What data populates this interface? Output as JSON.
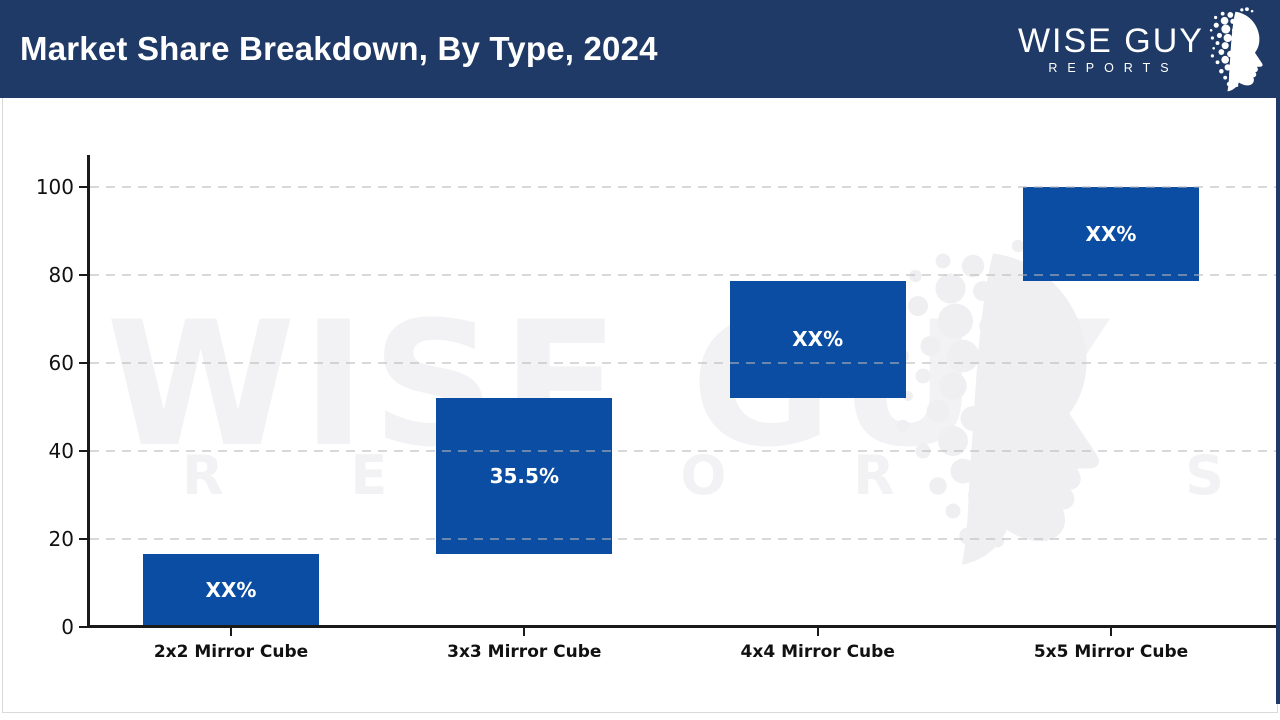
{
  "header": {
    "title": "Market Share Breakdown, By Type, 2024"
  },
  "logo": {
    "line1": "WISE GUY",
    "line2": "REPORTS"
  },
  "watermark": {
    "line1": "WISE GUY",
    "line2": "R E P O R T S"
  },
  "colors": {
    "header_bg": "#1F3A66",
    "bar": "#0B4DA2",
    "bar_label": "#FFFFFF",
    "axis": "#1A1A1A",
    "grid_dash": "#DCDCDC",
    "watermark": "#F2F2F4",
    "page_border": "#D9D9D9"
  },
  "chart_data": {
    "type": "bar",
    "subtype": "floating_segment_column",
    "title": "Market Share Breakdown, By Type, 2024",
    "categories": [
      "2x2 Mirror Cube",
      "3x3 Mirror Cube",
      "4x4 Mirror Cube",
      "5x5 Mirror Cube"
    ],
    "series": [
      {
        "name": "Market share (%)",
        "segments": [
          {
            "category": "2x2 Mirror Cube",
            "start": 0,
            "end": 16.5,
            "label": "XX%"
          },
          {
            "category": "3x3 Mirror Cube",
            "start": 16.5,
            "end": 52,
            "label": "35.5%"
          },
          {
            "category": "4x4 Mirror Cube",
            "start": 52,
            "end": 78.5,
            "label": "XX%"
          },
          {
            "category": "5x5 Mirror Cube",
            "start": 78.5,
            "end": 100,
            "label": "XX%"
          }
        ]
      }
    ],
    "xlabel": "",
    "ylabel": "",
    "ylim": [
      0,
      100
    ],
    "yticks": [
      0,
      20,
      40,
      60,
      80,
      100
    ],
    "grid": "horizontal_dashed",
    "legend": "none"
  }
}
